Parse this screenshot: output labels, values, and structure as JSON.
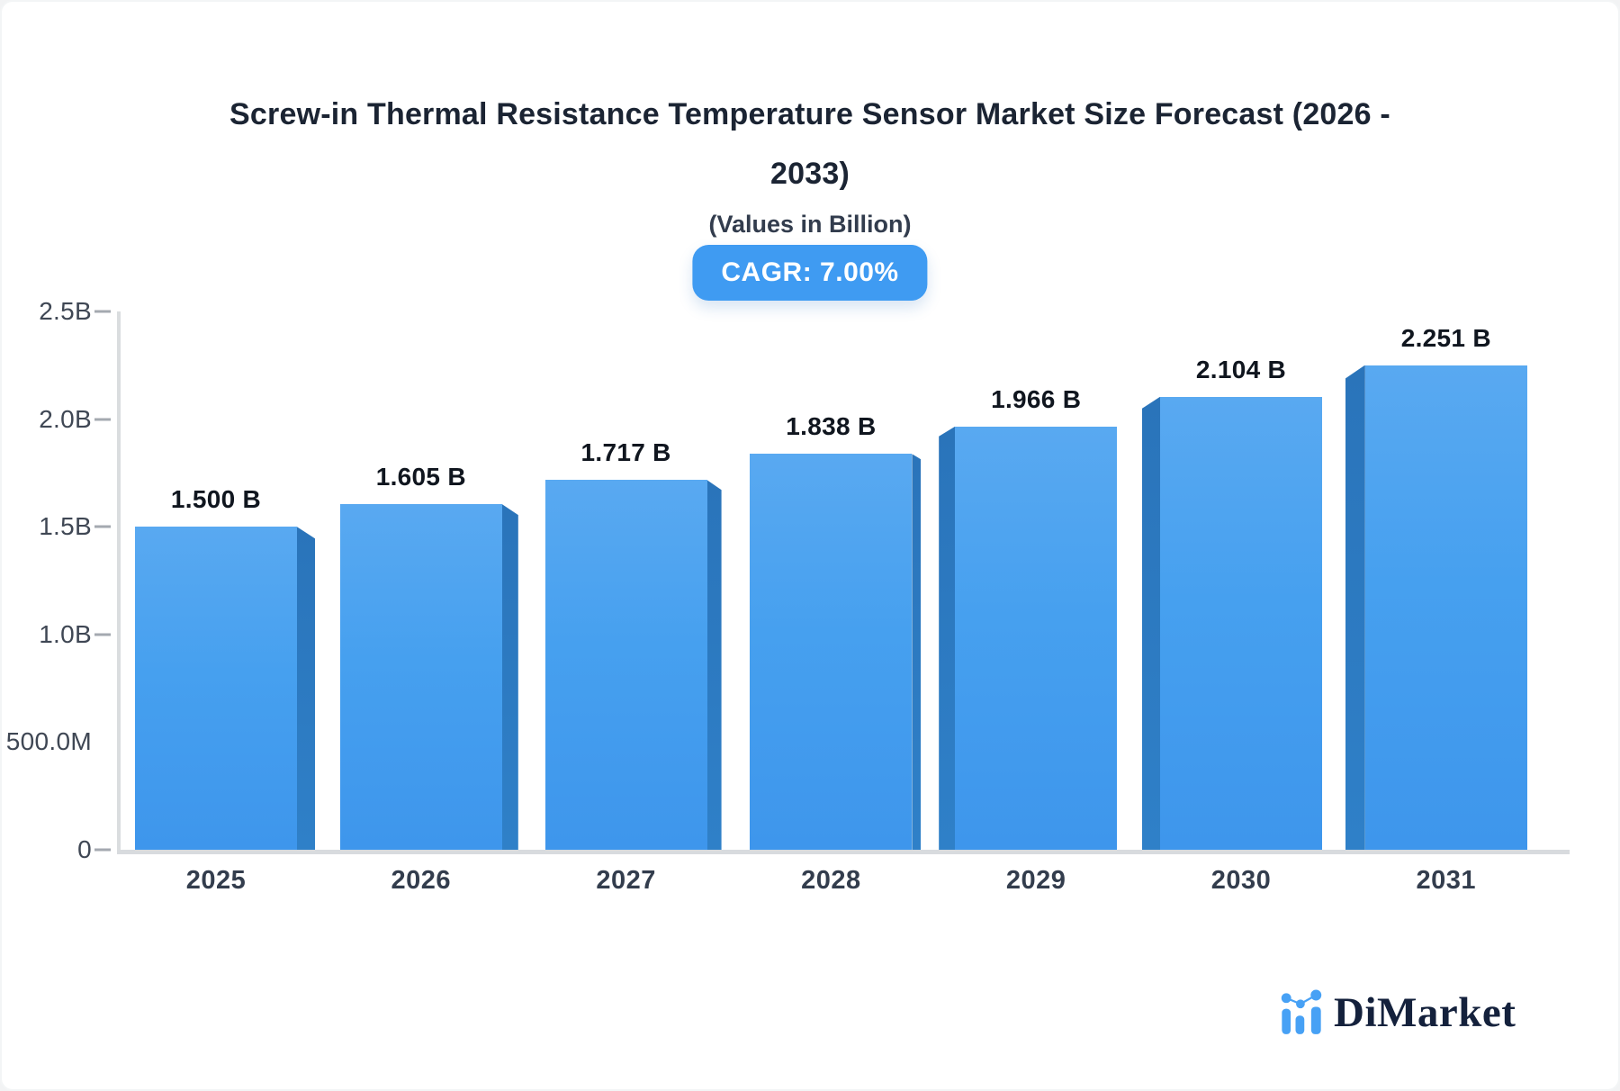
{
  "chart_data": {
    "type": "bar",
    "title": "Screw-in Thermal Resistance Temperature Sensor Market Size Forecast (2026 - 2033)",
    "title_lines": [
      "Screw-in Thermal Resistance Temperature Sensor Market Size Forecast (2026 -",
      "2033)"
    ],
    "subtitle": "(Values in Billion)",
    "cagr_badge": "CAGR: 7.00%",
    "categories": [
      "2025",
      "2026",
      "2027",
      "2028",
      "2029",
      "2030",
      "2031"
    ],
    "values": [
      1.5,
      1.605,
      1.717,
      1.838,
      1.966,
      2.104,
      2.251
    ],
    "bar_labels": [
      "1.500 B",
      "1.605 B",
      "1.717 B",
      "1.838 B",
      "1.966 B",
      "2.104 B",
      "2.251 B"
    ],
    "unit": "Billion",
    "ylim": [
      0,
      2.5
    ],
    "yticks": [
      {
        "label": "2.5B",
        "value": 2.5,
        "dash": true
      },
      {
        "label": "2.0B",
        "value": 2.0,
        "dash": true
      },
      {
        "label": "1.5B",
        "value": 1.5,
        "dash": true
      },
      {
        "label": "1.0B",
        "value": 1.0,
        "dash": true
      },
      {
        "label": "500.0M",
        "value": 0.5,
        "dash": false
      },
      {
        "label": "0",
        "value": 0.0,
        "dash": true
      }
    ],
    "grid": false,
    "legend": "none",
    "colors": {
      "bar_face": "#46a0ef",
      "bar_side": "#2d7bc1",
      "badge_bg": "#3f9bf2",
      "axis_line": "#d9dcde",
      "title_text": "#1b2433"
    }
  },
  "logo": {
    "text": "DiMarket",
    "icon": "mini-bar-chart-icon",
    "icon_color": "#47a1f5"
  }
}
